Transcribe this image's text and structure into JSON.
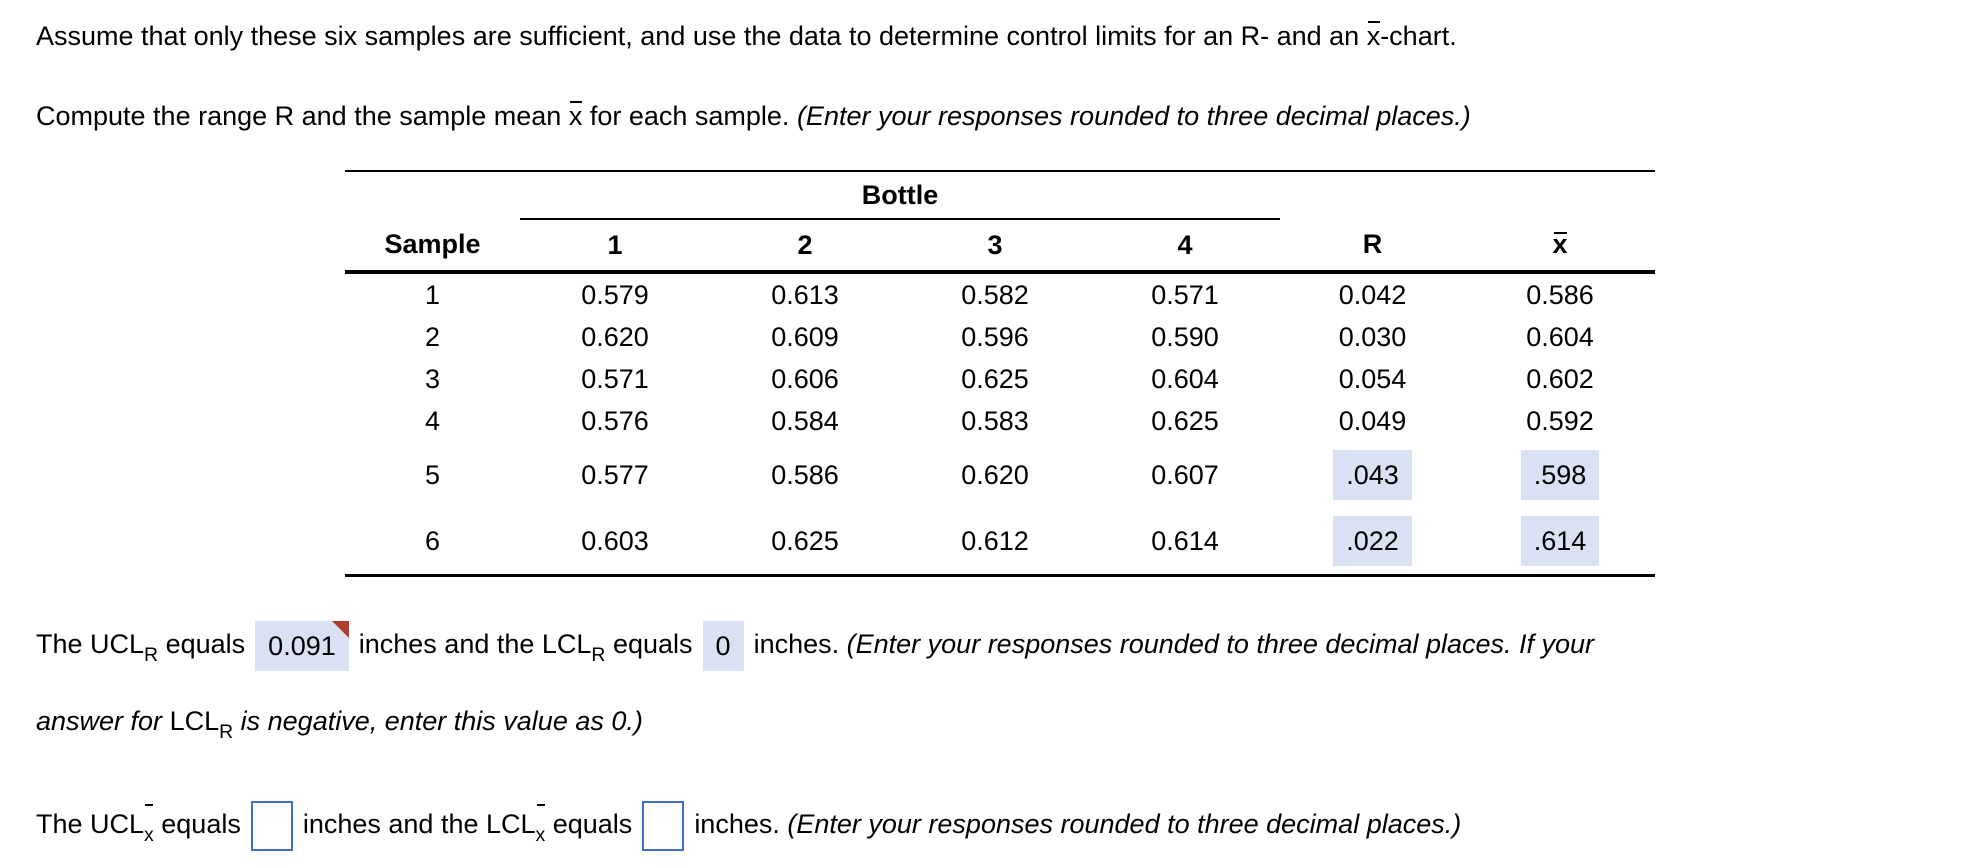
{
  "intro": {
    "line1_pre": "Assume that only these six samples are sufficient, and use the data to determine control limits for an R- and an ",
    "line1_xbar": "x",
    "line1_post": "-chart.",
    "line2_pre": "Compute the range R and the sample mean ",
    "line2_xbar": "x",
    "line2_mid": " for each sample. ",
    "line2_note": "(Enter your responses rounded to three decimal places.)"
  },
  "table": {
    "group_header": "Bottle",
    "headers": {
      "sample": "Sample",
      "b1": "1",
      "b2": "2",
      "b3": "3",
      "b4": "4",
      "r": "R",
      "xbar": "x"
    },
    "rows": [
      {
        "sample": "1",
        "b1": "0.579",
        "b2": "0.613",
        "b3": "0.582",
        "b4": "0.571",
        "r": "0.042",
        "xbar": "0.586"
      },
      {
        "sample": "2",
        "b1": "0.620",
        "b2": "0.609",
        "b3": "0.596",
        "b4": "0.590",
        "r": "0.030",
        "xbar": "0.604"
      },
      {
        "sample": "3",
        "b1": "0.571",
        "b2": "0.606",
        "b3": "0.625",
        "b4": "0.604",
        "r": "0.054",
        "xbar": "0.602"
      },
      {
        "sample": "4",
        "b1": "0.576",
        "b2": "0.584",
        "b3": "0.583",
        "b4": "0.625",
        "r": "0.049",
        "xbar": "0.592"
      },
      {
        "sample": "5",
        "b1": "0.577",
        "b2": "0.586",
        "b3": "0.620",
        "b4": "0.607",
        "r": ".043",
        "xbar": ".598"
      },
      {
        "sample": "6",
        "b1": "0.603",
        "b2": "0.625",
        "b3": "0.612",
        "b4": "0.614",
        "r": ".022",
        "xbar": ".614"
      }
    ]
  },
  "r_limits": {
    "pre": "The UCL",
    "sub1": "R",
    "seg1": " equals",
    "ucl_value": "0.091",
    "seg2": "inches and the LCL",
    "sub2": "R",
    "seg3": " equals",
    "lcl_value": "0",
    "seg4": "inches. ",
    "note1": "(Enter your responses rounded to three decimal places. If your",
    "note2a": "answer for ",
    "lcl_label": "LCL",
    "sub3": "R",
    "note2b": " is negative, enter this value as 0.)"
  },
  "x_limits": {
    "pre": "The UCL",
    "sub": "x",
    "seg1": " equals",
    "ucl_value": "",
    "seg2": "inches and the LCL",
    "seg3": " equals",
    "lcl_value": "",
    "seg4": "inches. ",
    "note": "(Enter your responses rounded to three decimal places.)"
  },
  "colors": {
    "answer_highlight_bg": "#d9e1f2",
    "incorrect_flag_red": "#b23b30",
    "input_border_blue": "#3f6cc8",
    "text": "#000000",
    "background": "#ffffff"
  },
  "icons": {
    "incorrect_flag": "red-corner-triangle"
  }
}
